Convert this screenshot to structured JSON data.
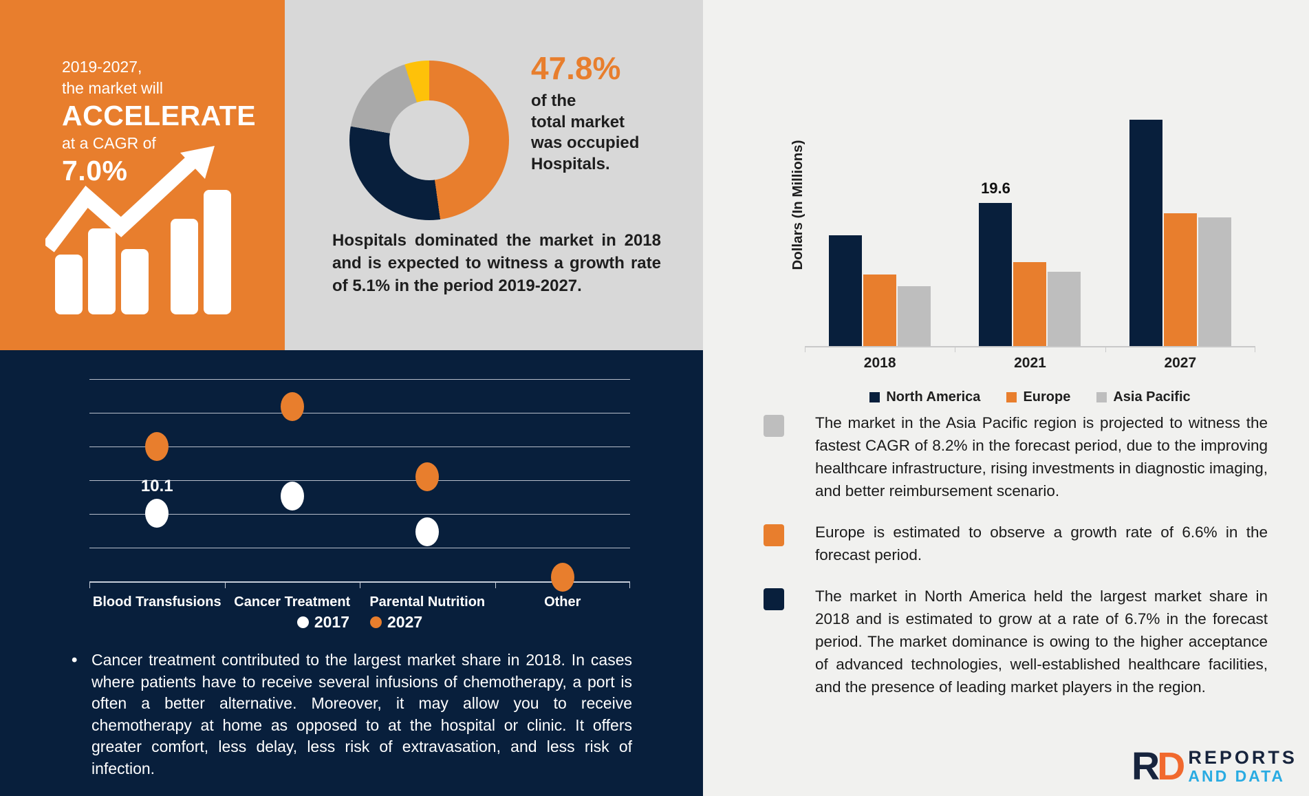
{
  "colors": {
    "orange": "#E87E2D",
    "navy": "#081F3C",
    "panel_gray": "#D8D8D8",
    "page_bg": "#F1F1EF",
    "bar_gray": "#BEBEBE",
    "donut_gray": "#A9A9A9",
    "yellow": "#FEC109",
    "text_dark": "#1E1E1E",
    "white": "#FFFFFF",
    "logo_navy": "#17243D",
    "logo_orange": "#F1692E",
    "logo_blue": "#29ABE2"
  },
  "accelerate_panel": {
    "period": "2019-2027,",
    "line2": "the market will",
    "emphasis": "ACCELERATE",
    "line4": "at a CAGR of",
    "cagr": "7.0%"
  },
  "hospital_panel": {
    "stat": "47.8%",
    "stat_caption": "of the\ntotal market\nwas occupied\nHospitals.",
    "body": "Hospitals dominated the market in 2018 and is expected to witness a growth rate of 5.1% in the period 2019-2027."
  },
  "regional_insights": [
    {
      "marker_color": "#BEBEBE",
      "text": "The market in the Asia Pacific region is projected to witness the fastest CAGR of 8.2% in the forecast period, due to the improving healthcare infrastructure, rising investments in diagnostic imaging, and better reimbursement scenario."
    },
    {
      "marker_color": "#E87E2D",
      "text": "Europe is estimated to observe a growth rate of 6.6% in the forecast period."
    },
    {
      "marker_color": "#081F3C",
      "text": "The market in North America held the largest market share in 2018 and is estimated to grow at a rate of 6.7% in the forecast period. The market dominance is owing to the higher acceptance of advanced technologies, well-established healthcare facilities, and the presence of leading market players in the region."
    }
  ],
  "product_insight": {
    "bullet": "•",
    "text": "Cancer treatment contributed to the largest market share in 2018. In cases where patients have to receive several infusions of chemotherapy, a port is often a better alternative. Moreover, it may allow you to receive chemotherapy at home as opposed to at the hospital or clinic. It offers greater comfort, less delay, less risk of extravasation, and less risk of infection."
  },
  "logo": {
    "mark_r": "R",
    "mark_d": "D",
    "reports": "REPORTS",
    "and_data": "AND DATA"
  },
  "chart_data": [
    {
      "type": "pie",
      "variant": "donut",
      "slices": [
        {
          "label": "Hospitals",
          "value": 47.8,
          "color": "#E87E2D"
        },
        {
          "label": "",
          "value": 30.0,
          "color": "#081F3C"
        },
        {
          "label": "",
          "value": 17.2,
          "color": "#A9A9A9"
        },
        {
          "label": "",
          "value": 5.0,
          "color": "#FEC109"
        }
      ],
      "annotation": "47.8% of the total market was occupied Hospitals.",
      "note": "Only the Hospitals slice (47.8%) is labeled; other slice values estimated from arc angles."
    },
    {
      "type": "bar",
      "ylabel": "Dollars (In Millions)",
      "categories": [
        "2018",
        "2021",
        "2027"
      ],
      "series": [
        {
          "name": "North America",
          "color": "#081F3C",
          "values": [
            15.2,
            19.6,
            31.0
          ]
        },
        {
          "name": "Europe",
          "color": "#E87E2D",
          "values": [
            9.8,
            11.5,
            18.2
          ]
        },
        {
          "name": "Asia Pacific",
          "color": "#BEBEBE",
          "values": [
            8.2,
            10.2,
            17.6
          ]
        }
      ],
      "data_labels": [
        {
          "series": "North America",
          "category": "2021",
          "text": "19.6"
        }
      ],
      "legend_position": "bottom",
      "grid": false,
      "note": "Only 19.6 is labeled on the chart; remaining values estimated from bar heights."
    },
    {
      "type": "scatter",
      "variant": "categorical-dot-plot",
      "categories": [
        "Blood Transfusions",
        "Cancer Treatment",
        "Parental Nutrition",
        "Other"
      ],
      "series": [
        {
          "name": "2017",
          "color": "#FFFFFF",
          "values": [
            10.1,
            12.7,
            7.3,
            null
          ]
        },
        {
          "name": "2027",
          "color": "#E87E2D",
          "values": [
            20.0,
            25.9,
            15.5,
            0.6
          ]
        }
      ],
      "data_labels": [
        {
          "series": "2017",
          "category": "Blood Transfusions",
          "text": "10.1"
        }
      ],
      "ylim": [
        0,
        30
      ],
      "gridline_step": 5,
      "legend_position": "bottom",
      "grid": true,
      "note": "Only 10.1 is labeled on the chart; remaining values estimated against gridlines; 2017 value for Other not visible."
    }
  ]
}
